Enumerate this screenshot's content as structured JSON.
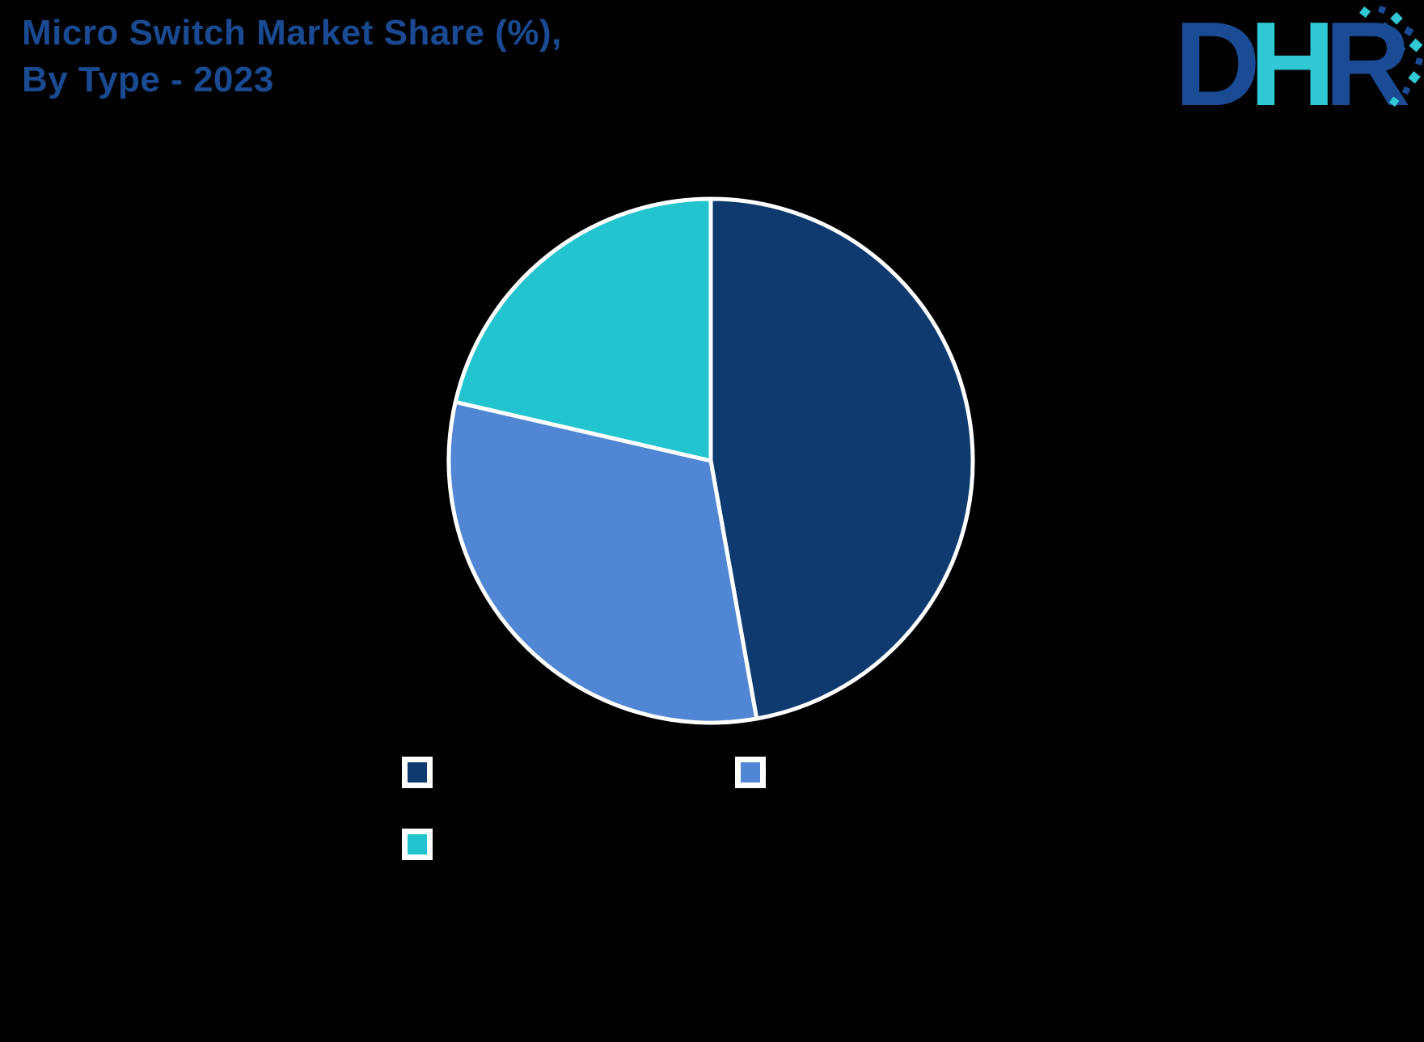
{
  "title": {
    "line1": "Micro Switch Market Share (%),",
    "line2": "By Type - 2023"
  },
  "logo": {
    "letter_d": "D",
    "letter_h": "H",
    "letter_r": "R"
  },
  "colors": {
    "background": "#000000",
    "title_text": "#1a4a92",
    "logo_blue": "#1b4b94",
    "logo_teal": "#30c8d4",
    "slice_stroke": "#ffffff",
    "legend_swatch_border": "#ffffff",
    "slice_navy": "#0e3a70",
    "slice_blue": "#5086d4",
    "slice_teal": "#22c5cf"
  },
  "chart_data": {
    "type": "pie",
    "title": "Micro Switch Market Share (%), By Type - 2023",
    "start_angle_deg": 0,
    "direction": "clockwise",
    "labels_visible": false,
    "legend_position": "bottom",
    "segments": [
      {
        "label": "",
        "value": 47.2,
        "color": "#0e3a70"
      },
      {
        "label": "",
        "value": 31.4,
        "color": "#5086d4"
      },
      {
        "label": "",
        "value": 21.4,
        "color": "#22c5cf"
      }
    ]
  },
  "legend": {
    "items": [
      {
        "label": "",
        "color": "#0e3a70"
      },
      {
        "label": "",
        "color": "#5086d4"
      },
      {
        "label": "",
        "color": "#22c5cf"
      }
    ]
  }
}
